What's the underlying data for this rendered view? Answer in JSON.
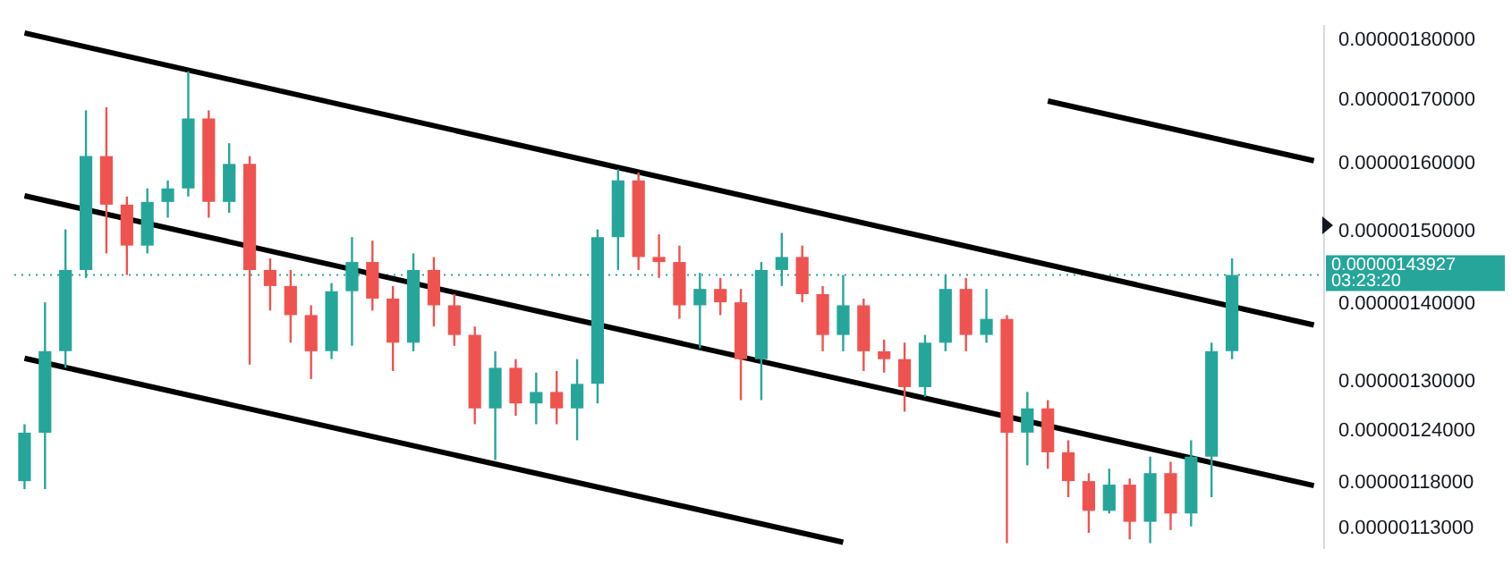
{
  "chart_data": {
    "type": "candlestick",
    "categories": [
      null,
      null,
      null,
      null,
      null,
      null,
      null,
      null,
      null,
      null,
      null,
      null,
      null,
      null,
      null,
      null,
      null,
      null,
      null,
      null,
      null,
      null,
      null,
      null,
      null,
      null,
      null,
      null,
      null,
      null,
      null,
      null,
      null,
      null,
      null,
      null,
      null,
      null,
      null,
      null,
      null,
      null,
      null,
      null,
      null,
      null,
      null,
      null,
      null,
      null,
      null,
      null,
      null,
      null,
      null,
      null,
      null,
      null,
      null,
      null,
      null,
      null,
      null,
      null
    ],
    "ohlc": [
      [
        1.182e-06,
        1.248e-06,
        1.173e-06,
        1.238e-06
      ],
      [
        1.238e-06,
        1.402e-06,
        1.173e-06,
        1.338e-06
      ],
      [
        1.338e-06,
        1.503e-06,
        1.317e-06,
        1.446e-06
      ],
      [
        1.446e-06,
        1.684e-06,
        1.435e-06,
        1.612e-06
      ],
      [
        1.612e-06,
        1.689e-06,
        1.469e-06,
        1.539e-06
      ],
      [
        1.539e-06,
        1.551e-06,
        1.439e-06,
        1.48e-06
      ],
      [
        1.48e-06,
        1.563e-06,
        1.469e-06,
        1.543e-06
      ],
      [
        1.543e-06,
        1.575e-06,
        1.52e-06,
        1.563e-06
      ],
      [
        1.563e-06,
        1.748e-06,
        1.551e-06,
        1.671e-06
      ],
      [
        1.671e-06,
        1.684e-06,
        1.52e-06,
        1.543e-06
      ],
      [
        1.543e-06,
        1.632e-06,
        1.527e-06,
        1.6e-06
      ],
      [
        1.6e-06,
        1.612e-06,
        1.321e-06,
        1.446e-06
      ],
      [
        1.446e-06,
        1.462e-06,
        1.391e-06,
        1.424e-06
      ],
      [
        1.424e-06,
        1.446e-06,
        1.349e-06,
        1.385e-06
      ],
      [
        1.385e-06,
        1.398e-06,
        1.303e-06,
        1.338e-06
      ],
      [
        1.338e-06,
        1.428e-06,
        1.328e-06,
        1.417e-06
      ],
      [
        1.417e-06,
        1.492e-06,
        1.345e-06,
        1.457e-06
      ],
      [
        1.457e-06,
        1.487e-06,
        1.391e-06,
        1.407e-06
      ],
      [
        1.407e-06,
        1.424e-06,
        1.313e-06,
        1.349e-06
      ],
      [
        1.349e-06,
        1.469e-06,
        1.338e-06,
        1.446e-06
      ],
      [
        1.446e-06,
        1.464e-06,
        1.37e-06,
        1.398e-06
      ],
      [
        1.398e-06,
        1.413e-06,
        1.345e-06,
        1.359e-06
      ],
      [
        1.359e-06,
        1.37e-06,
        1.248e-06,
        1.267e-06
      ],
      [
        1.267e-06,
        1.338e-06,
        1.206e-06,
        1.317e-06
      ],
      [
        1.317e-06,
        1.328e-06,
        1.258e-06,
        1.273e-06
      ],
      [
        1.273e-06,
        1.311e-06,
        1.248e-06,
        1.287e-06
      ],
      [
        1.287e-06,
        1.313e-06,
        1.248e-06,
        1.267e-06
      ],
      [
        1.267e-06,
        1.328e-06,
        1.229e-06,
        1.297e-06
      ],
      [
        1.297e-06,
        1.503e-06,
        1.273e-06,
        1.492e-06
      ],
      [
        1.492e-06,
        1.592e-06,
        1.446e-06,
        1.575e-06
      ],
      [
        1.575e-06,
        1.587e-06,
        1.446e-06,
        1.464e-06
      ],
      [
        1.464e-06,
        1.496e-06,
        1.435e-06,
        1.457e-06
      ],
      [
        1.457e-06,
        1.48e-06,
        1.38e-06,
        1.398e-06
      ],
      [
        1.398e-06,
        1.442e-06,
        1.342e-06,
        1.42e-06
      ],
      [
        1.42e-06,
        1.435e-06,
        1.385e-06,
        1.402e-06
      ],
      [
        1.402e-06,
        1.42e-06,
        1.277e-06,
        1.328e-06
      ],
      [
        1.328e-06,
        1.457e-06,
        1.277e-06,
        1.446e-06
      ],
      [
        1.446e-06,
        1.498e-06,
        1.424e-06,
        1.464e-06
      ],
      [
        1.464e-06,
        1.48e-06,
        1.402e-06,
        1.413e-06
      ],
      [
        1.413e-06,
        1.424e-06,
        1.338e-06,
        1.359e-06
      ],
      [
        1.359e-06,
        1.439e-06,
        1.338e-06,
        1.398e-06
      ],
      [
        1.398e-06,
        1.407e-06,
        1.313e-06,
        1.338e-06
      ],
      [
        1.338e-06,
        1.353e-06,
        1.311e-06,
        1.328e-06
      ],
      [
        1.328e-06,
        1.349e-06,
        1.263e-06,
        1.293e-06
      ],
      [
        1.293e-06,
        1.359e-06,
        1.281e-06,
        1.349e-06
      ],
      [
        1.349e-06,
        1.439e-06,
        1.338e-06,
        1.42e-06
      ],
      [
        1.42e-06,
        1.435e-06,
        1.338e-06,
        1.359e-06
      ],
      [
        1.359e-06,
        1.42e-06,
        1.349e-06,
        1.38e-06
      ],
      [
        1.38e-06,
        1.385e-06,
        1.114e-06,
        1.238e-06
      ],
      [
        1.238e-06,
        1.287e-06,
        1.2e-06,
        1.267e-06
      ],
      [
        1.267e-06,
        1.277e-06,
        1.196e-06,
        1.215e-06
      ],
      [
        1.215e-06,
        1.229e-06,
        1.164e-06,
        1.182e-06
      ],
      [
        1.182e-06,
        1.191e-06,
        1.125e-06,
        1.149e-06
      ],
      [
        1.149e-06,
        1.196e-06,
        1.146e-06,
        1.178e-06
      ],
      [
        1.178e-06,
        1.185e-06,
        1.118e-06,
        1.137e-06
      ],
      [
        1.137e-06,
        1.21e-06,
        1.114e-06,
        1.191e-06
      ],
      [
        1.191e-06,
        1.204e-06,
        1.128e-06,
        1.146e-06
      ],
      [
        1.146e-06,
        1.229e-06,
        1.132e-06,
        1.21e-06
      ],
      [
        1.21e-06,
        1.349e-06,
        1.164e-06,
        1.338e-06
      ],
      [
        1.338e-06,
        1.462e-06,
        1.328e-06,
        1.43927e-06
      ],
      null,
      null,
      null,
      null
    ],
    "colors": [
      "#26a69a",
      "#26a69a",
      "#26a69a",
      "#26a69a",
      "#ef5350",
      "#ef5350",
      "#26a69a",
      "#26a69a",
      "#26a69a",
      "#ef5350",
      "#26a69a",
      "#ef5350",
      "#ef5350",
      "#ef5350",
      "#ef5350",
      "#26a69a",
      "#26a69a",
      "#ef5350",
      "#ef5350",
      "#26a69a",
      "#ef5350",
      "#ef5350",
      "#ef5350",
      "#26a69a",
      "#ef5350",
      "#26a69a",
      "#ef5350",
      "#26a69a",
      "#26a69a",
      "#26a69a",
      "#ef5350",
      "#ef5350",
      "#ef5350",
      "#26a69a",
      "#ef5350",
      "#ef5350",
      "#26a69a",
      "#26a69a",
      "#ef5350",
      "#ef5350",
      "#26a69a",
      "#ef5350",
      "#ef5350",
      "#ef5350",
      "#26a69a",
      "#26a69a",
      "#ef5350",
      "#26a69a",
      "#ef5350",
      "#26a69a",
      "#ef5350",
      "#ef5350",
      "#ef5350",
      "#26a69a",
      "#ef5350",
      "#26a69a",
      "#ef5350",
      "#26a69a",
      "#26a69a",
      "#26a69a",
      null,
      null,
      null,
      null
    ],
    "series": [
      {
        "type": "line",
        "color": "#000000",
        "values": [
          1.813e-06,
          null,
          null,
          null,
          null,
          null,
          null,
          null,
          null,
          null,
          null,
          null,
          null,
          null,
          null,
          null,
          null,
          null,
          null,
          null,
          null,
          null,
          null,
          null,
          null,
          null,
          null,
          null,
          null,
          null,
          null,
          null,
          null,
          null,
          null,
          null,
          null,
          null,
          null,
          null,
          null,
          null,
          null,
          null,
          null,
          null,
          null,
          null,
          null,
          null,
          null,
          null,
          null,
          null,
          null,
          null,
          null,
          null,
          null,
          null,
          null,
          null,
          null,
          1.372e-06
        ]
      },
      {
        "type": "line",
        "color": "#000000",
        "values": [
          1.552e-06,
          null,
          null,
          null,
          null,
          null,
          null,
          null,
          null,
          null,
          null,
          null,
          null,
          null,
          null,
          null,
          null,
          null,
          null,
          null,
          null,
          null,
          null,
          null,
          null,
          null,
          null,
          null,
          null,
          null,
          null,
          null,
          null,
          null,
          null,
          null,
          null,
          null,
          null,
          null,
          null,
          null,
          null,
          null,
          null,
          null,
          null,
          null,
          null,
          null,
          null,
          null,
          null,
          null,
          null,
          null,
          null,
          null,
          null,
          null,
          null,
          null,
          null,
          1.177e-06
        ]
      },
      {
        "type": "line",
        "color": "#000000",
        "values": [
          1.329e-06,
          null,
          null,
          null,
          null,
          null,
          null,
          null,
          null,
          null,
          null,
          null,
          null,
          null,
          null,
          null,
          null,
          null,
          null,
          null,
          null,
          null,
          null,
          null,
          null,
          null,
          null,
          null,
          null,
          null,
          null,
          null,
          null,
          null,
          null,
          null,
          null,
          null,
          null,
          null,
          1.115e-06,
          null,
          null,
          null,
          null,
          null,
          null,
          null,
          null,
          null,
          null,
          null,
          null,
          null,
          null,
          null,
          null,
          null,
          null,
          null,
          null,
          null,
          null,
          null
        ]
      },
      {
        "type": "line",
        "color": "#000000",
        "values": [
          null,
          null,
          null,
          null,
          null,
          null,
          null,
          null,
          null,
          null,
          null,
          null,
          null,
          null,
          null,
          null,
          null,
          null,
          null,
          null,
          null,
          null,
          null,
          null,
          null,
          null,
          null,
          null,
          null,
          null,
          null,
          null,
          null,
          null,
          null,
          null,
          null,
          null,
          null,
          null,
          null,
          null,
          null,
          null,
          null,
          null,
          null,
          null,
          null,
          null,
          1.699e-06,
          null,
          null,
          null,
          null,
          null,
          null,
          null,
          null,
          null,
          null,
          null,
          null,
          1.605e-06
        ]
      }
    ],
    "ylim": [
      1.109e-06,
      1.825e-06
    ],
    "yticks": [
      {
        "value": 1.8e-06,
        "label": "0.00000180000"
      },
      {
        "value": 1.7e-06,
        "label": "0.00000170000"
      },
      {
        "value": 1.6e-06,
        "label": "0.00000160000"
      },
      {
        "value": 1.5e-06,
        "label": "0.00000150000"
      },
      {
        "value": 1.4e-06,
        "label": "0.00000140000"
      },
      {
        "value": 1.3e-06,
        "label": "0.00000130000"
      },
      {
        "value": 1.24e-06,
        "label": "0.00000124000"
      },
      {
        "value": 1.18e-06,
        "label": "0.00000118000"
      },
      {
        "value": 1.13e-06,
        "label": "0.00000113000"
      }
    ],
    "log": "y",
    "grid": false,
    "legend": false,
    "tick_labels": "y",
    "ref_lines": [
      {
        "axis": "y",
        "value": 1.43927e-06,
        "label": "0.00000143927",
        "color": "#26a69a",
        "line_style": "dotted"
      }
    ],
    "annotations": [
      "03:23:20"
    ]
  }
}
